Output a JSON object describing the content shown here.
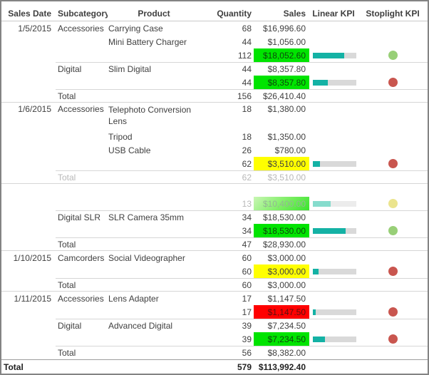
{
  "palette": {
    "kpi_green": "#00e400",
    "kpi_yellow": "#ffff00",
    "kpi_red": "#ff0000",
    "bar_fill_teal": "#14b2a5",
    "bar_track_gray": "#d9d9d9",
    "stoplight_green": "#98cf77",
    "stoplight_red": "#c9564f",
    "stoplight_yellow": "#ebe48d"
  },
  "header": {
    "sales_date": "Sales Date",
    "subcategory": "Subcategory",
    "product": "Product",
    "quantity": "Quantity",
    "sales": "Sales",
    "linear_kpi": "Linear KPI",
    "stoplight_kpi": "Stoplight KPI"
  },
  "rows": [
    {
      "date": "1/5/2015",
      "subcategory": "Accessories",
      "product": "Carrying Case",
      "quantity": "68",
      "sales": "$16,996.60"
    },
    {
      "product": "Mini Battery Charger",
      "quantity": "44",
      "sales": "$1,056.00"
    },
    {
      "quantity": "112",
      "sales": "$18,052.60",
      "highlight": "green",
      "bar_pct": 72,
      "bar_tone": "normal",
      "light": "green"
    },
    {
      "subcategory": "Digital",
      "product": "Slim Digital",
      "quantity": "44",
      "sales": "$8,357.80"
    },
    {
      "quantity": "44",
      "sales": "$8,357.80",
      "highlight": "green",
      "bar_pct": 34,
      "bar_tone": "normal",
      "light": "red"
    },
    {
      "subcategory": "Total",
      "quantity": "156",
      "sales": "$26,410.40"
    },
    {
      "date": "1/6/2015",
      "subcategory": "Accessories",
      "product": "Telephoto Conversion Lens",
      "quantity": "18",
      "sales": "$1,380.00"
    },
    {
      "product": "Tripod",
      "quantity": "18",
      "sales": "$1,350.00"
    },
    {
      "product": "USB Cable",
      "quantity": "26",
      "sales": "$780.00"
    },
    {
      "quantity": "62",
      "sales": "$3,510.00",
      "highlight": "yellow",
      "bar_pct": 16,
      "bar_tone": "normal",
      "light": "red"
    },
    {
      "subcategory": "Total",
      "quantity": "62",
      "sales": "$3,510.00"
    },
    {},
    {
      "quantity": "13",
      "sales": "$10,400.00",
      "highlight": "green-fade",
      "bar_pct": 41,
      "bar_tone": "faded",
      "light": "yellow-fade"
    },
    {
      "subcategory": "Digital SLR",
      "product": "SLR Camera 35mm",
      "quantity": "34",
      "sales": "$18,530.00"
    },
    {
      "quantity": "34",
      "sales": "$18,530.00",
      "highlight": "green",
      "bar_pct": 75,
      "bar_tone": "normal",
      "light": "green"
    },
    {
      "subcategory": "Total",
      "quantity": "47",
      "sales": "$28,930.00"
    },
    {
      "date": "1/10/2015",
      "subcategory": "Camcorders",
      "product": "Social Videographer",
      "quantity": "60",
      "sales": "$3,000.00"
    },
    {
      "quantity": "60",
      "sales": "$3,000.00",
      "highlight": "yellow",
      "bar_pct": 13,
      "bar_tone": "normal",
      "light": "red"
    },
    {
      "subcategory": "Total",
      "quantity": "60",
      "sales": "$3,000.00"
    },
    {
      "date": "1/11/2015",
      "subcategory": "Accessories",
      "product": "Lens Adapter",
      "quantity": "17",
      "sales": "$1,147.50"
    },
    {
      "quantity": "17",
      "sales": "$1,147.50",
      "highlight": "red",
      "bar_pct": 6,
      "bar_tone": "normal",
      "light": "red"
    },
    {
      "subcategory": "Digital",
      "product": "Advanced Digital",
      "quantity": "39",
      "sales": "$7,234.50"
    },
    {
      "quantity": "39",
      "sales": "$7,234.50",
      "highlight": "green",
      "bar_pct": 28,
      "bar_tone": "normal",
      "light": "red"
    },
    {
      "subcategory": "Total",
      "quantity": "56",
      "sales": "$8,382.00"
    }
  ],
  "grand_total": {
    "label": "Total",
    "quantity": "579",
    "sales": "$113,992.40"
  }
}
